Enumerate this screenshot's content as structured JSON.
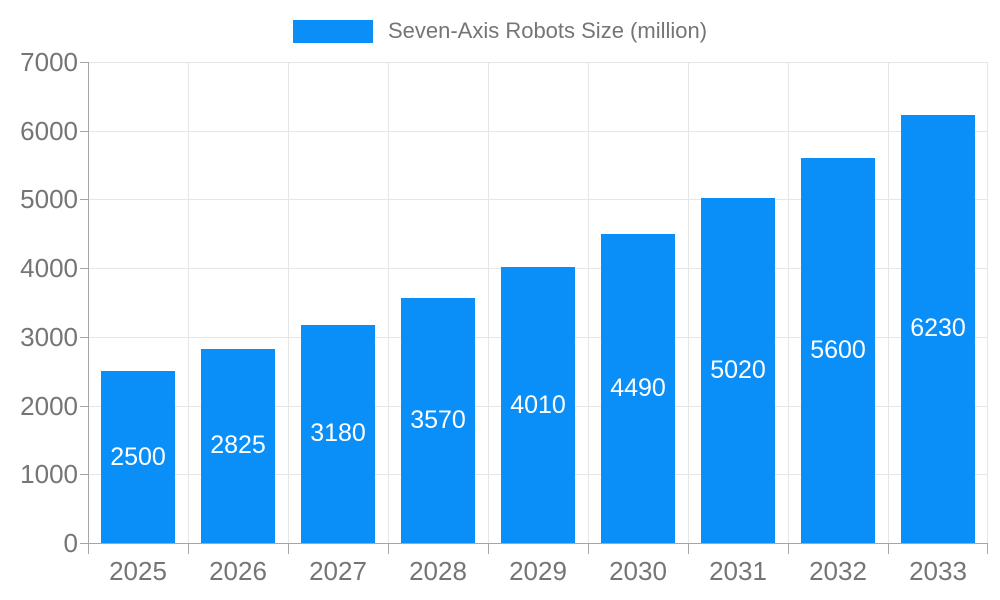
{
  "legend": {
    "label": "Seven-Axis Robots Size (million)"
  },
  "chart_data": {
    "type": "bar",
    "title": "Seven-Axis Robots Size (million)",
    "categories": [
      "2025",
      "2026",
      "2027",
      "2028",
      "2029",
      "2030",
      "2031",
      "2032",
      "2033"
    ],
    "series": [
      {
        "name": "Seven-Axis Robots Size (million)",
        "values": [
          2500,
          2825,
          3180,
          3570,
          4010,
          4490,
          5020,
          5600,
          6230
        ]
      }
    ],
    "xlabel": "",
    "ylabel": "",
    "ylim": [
      0,
      7000
    ],
    "y_ticks": [
      0,
      1000,
      2000,
      3000,
      4000,
      5000,
      6000,
      7000
    ],
    "grid": true,
    "legend_position": "top",
    "bar_labels_inside": true
  },
  "colors": {
    "bar": "#0a8ff9",
    "bar_label": "#ffffff",
    "axis_line": "#a6a6a6",
    "grid_line": "#e6e6e6",
    "tick_label": "#757575",
    "legend_label": "#757575",
    "background": "#ffffff"
  }
}
